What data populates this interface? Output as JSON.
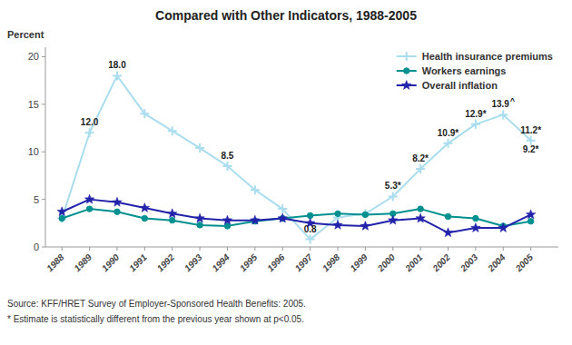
{
  "chart_data": {
    "type": "line",
    "title": "Compared with Other Indicators, 1988-2005",
    "y_label": "Percent",
    "x": [
      1988,
      1989,
      1990,
      1991,
      1992,
      1993,
      1994,
      1995,
      1996,
      1997,
      1998,
      1999,
      2000,
      2001,
      2002,
      2003,
      2004,
      2005
    ],
    "series": [
      {
        "name": "Health insurance premiums",
        "color": "#AADDEE",
        "marker": "plus",
        "values": [
          3.0,
          12.0,
          18.0,
          14.0,
          12.2,
          10.4,
          8.5,
          6.0,
          4.0,
          0.8,
          3.1,
          3.5,
          5.3,
          8.2,
          10.9,
          12.9,
          13.9,
          11.2
        ]
      },
      {
        "name": "Workers earnings",
        "color": "#009090",
        "marker": "circle",
        "values": [
          3.0,
          4.0,
          3.7,
          3.0,
          2.8,
          2.3,
          2.2,
          2.7,
          3.0,
          3.3,
          3.5,
          3.4,
          3.5,
          4.0,
          3.2,
          3.0,
          2.2,
          2.7
        ]
      },
      {
        "name": "Overall inflation",
        "color": "#2222AA",
        "marker": "star",
        "values": [
          3.7,
          5.0,
          4.7,
          4.1,
          3.5,
          3.0,
          2.8,
          2.8,
          3.0,
          2.5,
          2.3,
          2.2,
          2.8,
          3.0,
          1.5,
          2.0,
          2.0,
          3.4
        ]
      }
    ],
    "annotations": [
      {
        "text": "12.0",
        "x": 1989,
        "y": 12.0
      },
      {
        "text": "18.0",
        "x": 1990,
        "y": 18.0
      },
      {
        "text": "8.5",
        "x": 1994,
        "y": 8.5
      },
      {
        "text": "0.8",
        "x": 1997,
        "y": 0.8
      },
      {
        "text": "5.3*",
        "x": 2000,
        "y": 5.3
      },
      {
        "text": "8.2*",
        "x": 2001,
        "y": 8.2
      },
      {
        "text": "10.9*",
        "x": 2002,
        "y": 10.9
      },
      {
        "text": "12.9*",
        "x": 2003,
        "y": 12.9
      },
      {
        "text": "13.9",
        "x": 2004,
        "y": 13.9
      },
      {
        "text": "^",
        "x": 2004,
        "y": 13.9
      },
      {
        "text": "11.2*",
        "x": 2005,
        "y": 11.2
      },
      {
        "text": "9.2*",
        "x": 2005,
        "y": 9.2
      }
    ],
    "notes": [
      "Source: KFF/HRET Survey of Employer-Sponsored Health Benefits: 2005.",
      "* Estimate is statistically different from the previous year shown at p<0.05."
    ],
    "xlim": [
      1987.4,
      2006.0
    ],
    "xticks": [
      1988,
      1989,
      1990,
      1991,
      1992,
      1993,
      1994,
      1995,
      1996,
      1997,
      1998,
      1999,
      2000,
      2001,
      2002,
      2003,
      2004,
      2005
    ],
    "ylim": [
      0,
      21
    ],
    "yticks": [
      0,
      5,
      10,
      15,
      20
    ],
    "grid": false,
    "legend": "upper right"
  }
}
